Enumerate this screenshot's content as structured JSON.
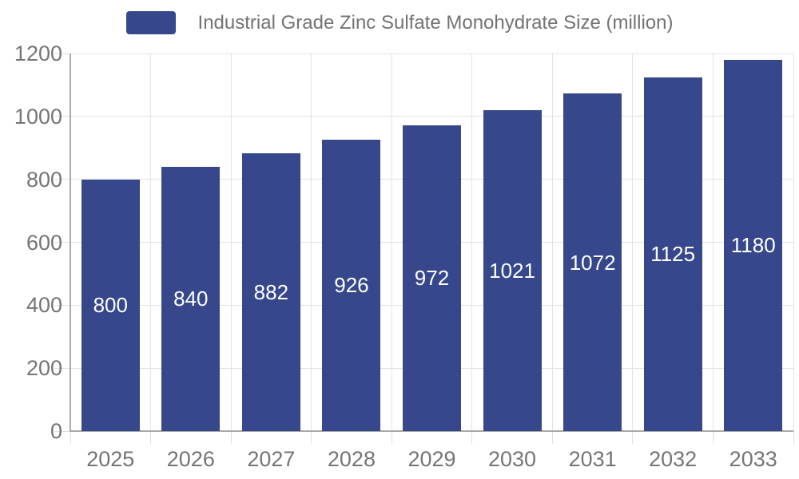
{
  "chart_data": {
    "type": "bar",
    "title": "Industrial Grade Zinc Sulfate Monohydrate Size (million)",
    "legend": {
      "position": "top-center",
      "label": "Industrial Grade Zinc Sulfate Monohydrate Size (million)"
    },
    "categories": [
      "2025",
      "2026",
      "2027",
      "2028",
      "2029",
      "2030",
      "2031",
      "2032",
      "2033"
    ],
    "values": [
      800,
      840,
      882,
      926,
      972,
      1021,
      1072,
      1125,
      1180
    ],
    "bar_value_labels": [
      "800",
      "840",
      "882",
      "926",
      "972",
      "1021",
      "1072",
      "1125",
      "1180"
    ],
    "xlabel": "",
    "ylabel": "",
    "ylim": [
      0,
      1200
    ],
    "y_ticks": [
      0,
      200,
      400,
      600,
      800,
      1000,
      1200
    ],
    "grid": true
  },
  "colors": {
    "bar": "#36488B",
    "bar_label_text": "#ffffff",
    "gridline": "#e3e3e3",
    "axis_line": "#a9a9a9",
    "axis_tick": "#e0e0e0",
    "axis_label_text": "#757575",
    "legend_text": "#737373",
    "background": "#ffffff"
  }
}
